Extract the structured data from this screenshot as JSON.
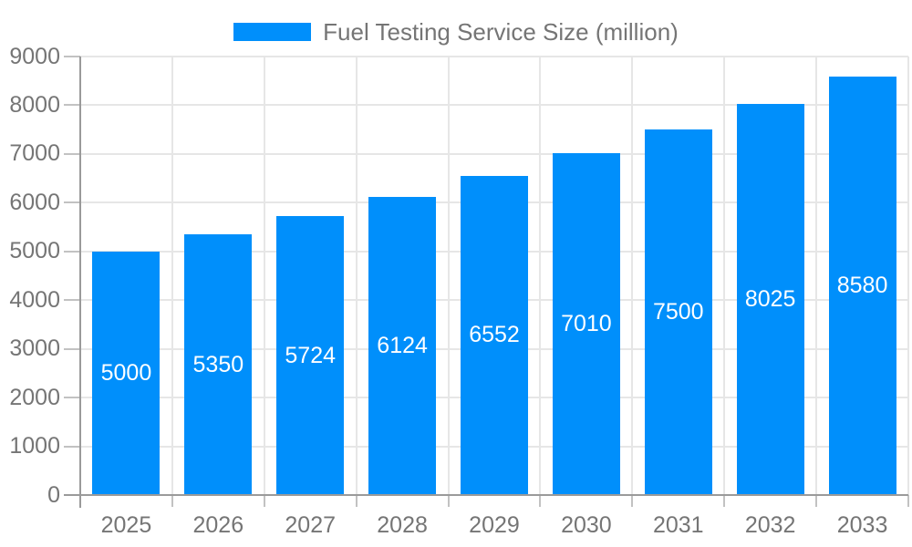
{
  "chart_data": {
    "type": "bar",
    "title": "Fuel Testing Service Size (million)",
    "legend_position": "top",
    "legend": [
      {
        "label": "Fuel Testing Service Size (million)",
        "color": "#008ffb"
      }
    ],
    "categories": [
      "2025",
      "2026",
      "2027",
      "2028",
      "2029",
      "2030",
      "2031",
      "2032",
      "2033"
    ],
    "series": [
      {
        "name": "Fuel Testing Service Size (million)",
        "values": [
          5000,
          5350,
          5724,
          6124,
          6552,
          7010,
          7500,
          8025,
          8580
        ]
      }
    ],
    "value_labels_shown": true,
    "xlabel": "",
    "ylabel": "",
    "ylim": [
      0,
      9000
    ],
    "ytick_step": 1000,
    "ytick_labels": [
      "0",
      "1000",
      "2000",
      "3000",
      "4000",
      "5000",
      "6000",
      "7000",
      "8000",
      "9000"
    ],
    "grid": true,
    "colors": {
      "bar": "#008ffb",
      "axis_label": "#757575",
      "value_label": "#ffffff",
      "gridline": "#e6e6e6",
      "axis_line": "#9a9a9a",
      "tick": "#c2c2c2"
    }
  }
}
